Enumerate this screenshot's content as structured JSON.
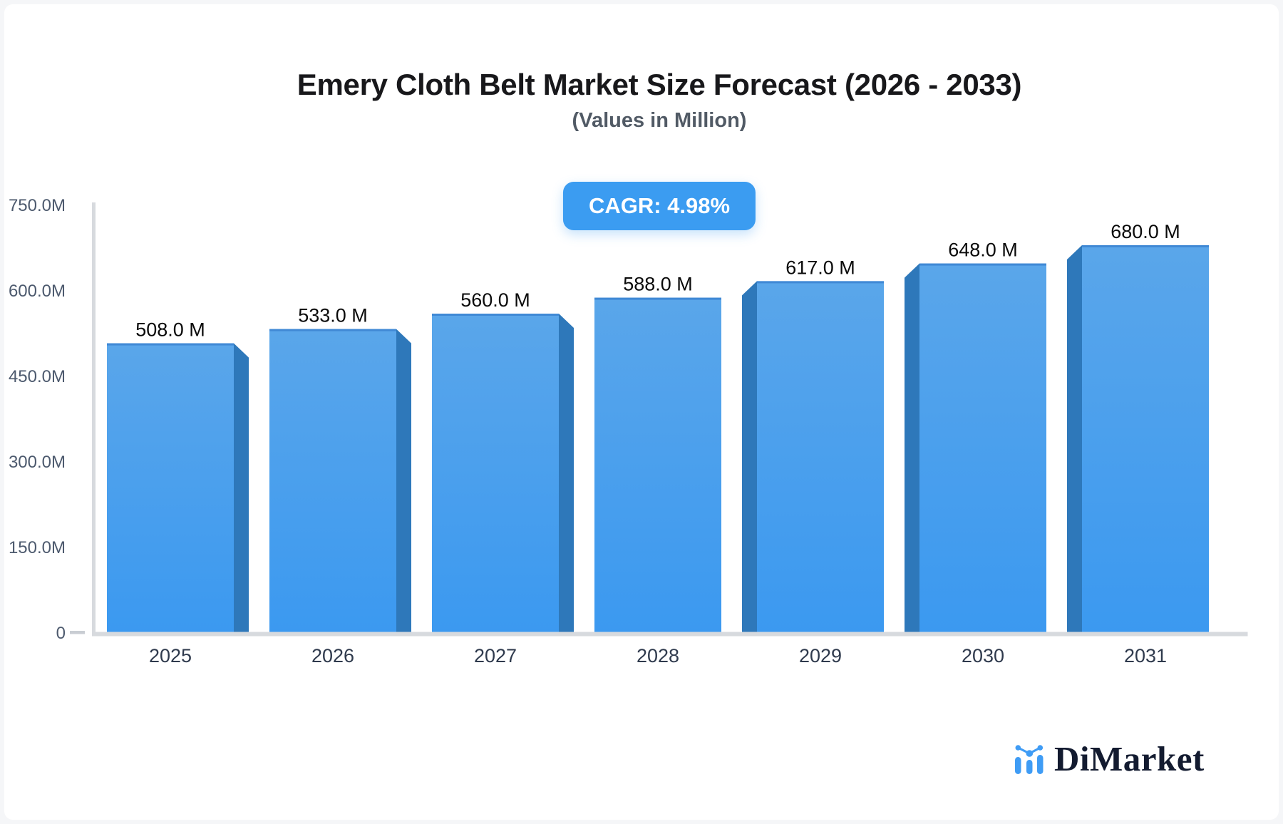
{
  "page": {
    "background": "#f5f6f8",
    "card_background": "#ffffff"
  },
  "header": {
    "title": "Emery Cloth Belt Market Size Forecast (2026 - 2033)",
    "subtitle": "(Values in Million)"
  },
  "cagr_badge": {
    "label": "CAGR: 4.98%",
    "background": "#3b9cf1",
    "text_color": "#ffffff"
  },
  "chart_data": {
    "type": "bar",
    "title": "Emery Cloth Belt Market Size Forecast (2026 - 2033)",
    "subtitle": "(Values in Million)",
    "unit": "Million",
    "categories": [
      "2025",
      "2026",
      "2027",
      "2028",
      "2029",
      "2030",
      "2031"
    ],
    "values": [
      508,
      533,
      560,
      588,
      617,
      648,
      680
    ],
    "value_labels": [
      "508.0 M",
      "533.0 M",
      "560.0 M",
      "588.0 M",
      "617.0 M",
      "648.0 M",
      "680.0 M"
    ],
    "ylim": [
      0,
      750
    ],
    "yticks": [
      {
        "value": 750,
        "label": "750.0M"
      },
      {
        "value": 600,
        "label": "600.0M"
      },
      {
        "value": 450,
        "label": "450.0M"
      },
      {
        "value": 300,
        "label": "300.0M"
      },
      {
        "value": 150,
        "label": "150.0M"
      },
      {
        "value": 0,
        "label": "0"
      }
    ],
    "grid": false,
    "legend": false,
    "style": "3d-bars, perspective vanishing point at center bar",
    "colors": {
      "bar_face_top": "#5aa6ea",
      "bar_face_bottom": "#3b99f0",
      "bar_top_edge": "#4089d5",
      "bar_side": "#2e78ba",
      "axis_line": "#d7dade",
      "zero_tick": "#c9cdd3",
      "value_label": "#0a0a0a",
      "x_tick_label": "#2f3a4d",
      "y_tick_label": "#4d5a6e"
    }
  },
  "logo": {
    "text": "DiMarket",
    "text_color": "#131b30",
    "icon": "bar-chart-logo-icon",
    "icon_color": "#3f9cf5"
  }
}
